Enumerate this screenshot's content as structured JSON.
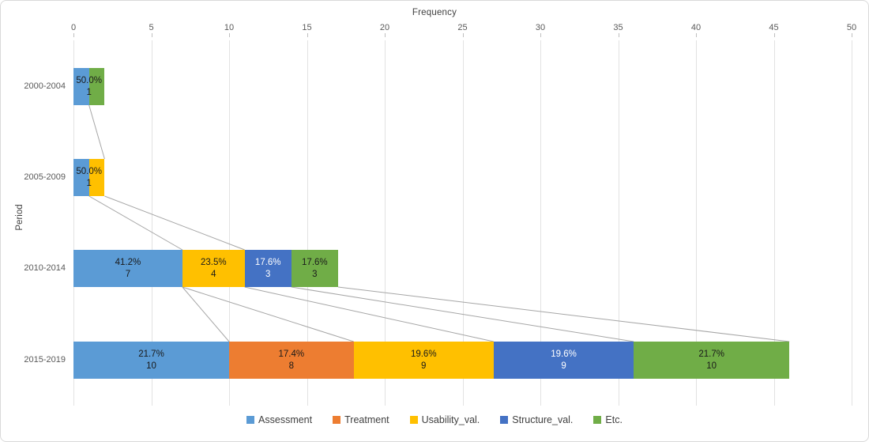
{
  "chart_data": {
    "type": "bar",
    "orientation": "horizontal-stacked",
    "xlabel": "Frequency",
    "ylabel": "Period",
    "xlim": [
      0,
      50
    ],
    "x_ticks": [
      0,
      5,
      10,
      15,
      20,
      25,
      30,
      35,
      40,
      45,
      50
    ],
    "grid": true,
    "legend_position": "bottom",
    "categories": [
      "2000-2004",
      "2005-2009",
      "2010-2014",
      "2015-2019"
    ],
    "series": [
      {
        "name": "Assessment",
        "color": "#5B9BD5",
        "values": [
          1,
          1,
          7,
          10
        ]
      },
      {
        "name": "Treatment",
        "color": "#ED7D31",
        "values": [
          0,
          0,
          0,
          8
        ]
      },
      {
        "name": "Usability_val.",
        "color": "#FFC000",
        "values": [
          0,
          1,
          4,
          9
        ]
      },
      {
        "name": "Structure_val.",
        "color": "#4472C4",
        "values": [
          0,
          0,
          3,
          9
        ]
      },
      {
        "name": "Etc.",
        "color": "#70AD47",
        "values": [
          1,
          0,
          3,
          10
        ]
      }
    ],
    "bars": [
      {
        "category": "2000-2004",
        "segments": [
          {
            "series": "Assessment",
            "value": 1
          },
          {
            "series": "Etc.",
            "value": 1
          }
        ],
        "overlay_label": {
          "pct": "50.0%",
          "count": "1"
        }
      },
      {
        "category": "2005-2009",
        "segments": [
          {
            "series": "Assessment",
            "value": 1
          },
          {
            "series": "Usability_val.",
            "value": 1
          }
        ],
        "overlay_label": {
          "pct": "50.0%",
          "count": "1"
        }
      },
      {
        "category": "2010-2014",
        "segments": [
          {
            "series": "Assessment",
            "value": 7,
            "label": {
              "pct": "41.2%",
              "count": "7"
            }
          },
          {
            "series": "Usability_val.",
            "value": 4,
            "label": {
              "pct": "23.5%",
              "count": "4"
            }
          },
          {
            "series": "Structure_val.",
            "value": 3,
            "label": {
              "pct": "17.6%",
              "count": "3"
            },
            "label_color": "#FFFFFF"
          },
          {
            "series": "Etc.",
            "value": 3,
            "label": {
              "pct": "17.6%",
              "count": "3"
            }
          }
        ]
      },
      {
        "category": "2015-2019",
        "segments": [
          {
            "series": "Assessment",
            "value": 10,
            "label": {
              "pct": "21.7%",
              "count": "10"
            }
          },
          {
            "series": "Treatment",
            "value": 8,
            "label": {
              "pct": "17.4%",
              "count": "8"
            }
          },
          {
            "series": "Usability_val.",
            "value": 9,
            "label": {
              "pct": "19.6%",
              "count": "9"
            }
          },
          {
            "series": "Structure_val.",
            "value": 9,
            "label": {
              "pct": "19.6%",
              "count": "9"
            },
            "label_color": "#FFFFFF"
          },
          {
            "series": "Etc.",
            "value": 10,
            "label": {
              "pct": "21.7%",
              "count": "10"
            }
          }
        ]
      }
    ],
    "connectors": [
      {
        "from_row": 0,
        "to_row": 1,
        "x_from": 1,
        "x_to": 2
      },
      {
        "from_row": 1,
        "to_row": 2,
        "x_from": 1,
        "x_to": 7
      },
      {
        "from_row": 1,
        "to_row": 2,
        "x_from": 2,
        "x_to": 11
      },
      {
        "from_row": 2,
        "to_row": 3,
        "x_from": 7,
        "x_to": 10
      },
      {
        "from_row": 2,
        "to_row": 3,
        "x_from": 7,
        "x_to": 18
      },
      {
        "from_row": 2,
        "to_row": 3,
        "x_from": 11,
        "x_to": 27
      },
      {
        "from_row": 2,
        "to_row": 3,
        "x_from": 14,
        "x_to": 36
      },
      {
        "from_row": 2,
        "to_row": 3,
        "x_from": 17,
        "x_to": 46
      }
    ],
    "colors": {
      "gridline": "#E2E2E2",
      "tickmark": "#BFBFBF",
      "connector": "#A6A6A6",
      "axis_text": "#595959",
      "axis_title": "#3F3F3F",
      "data_label": "#1A1A1A",
      "chart_border": "#D9D9D9"
    }
  }
}
